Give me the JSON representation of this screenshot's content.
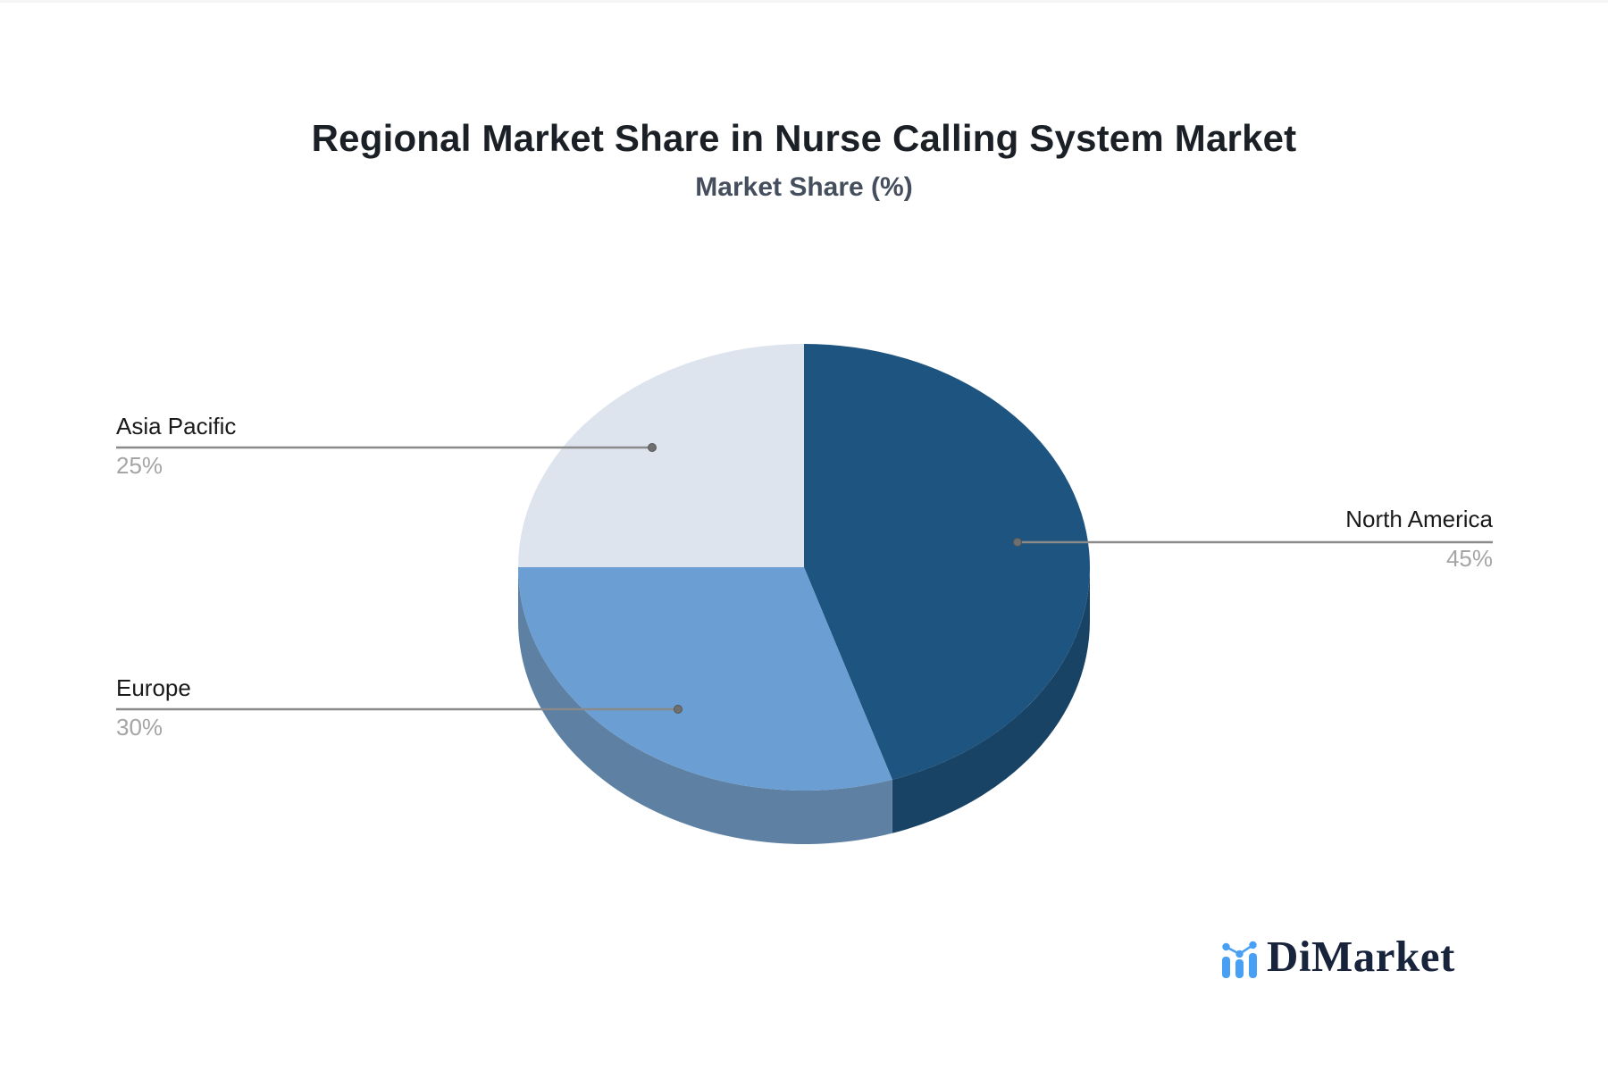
{
  "header": {
    "title": "Regional Market Share in Nurse Calling System Market",
    "subtitle": "Market Share (%)"
  },
  "chart_data": {
    "type": "pie",
    "style": "3d",
    "title": "Regional Market Share in Nurse Calling System Market",
    "subtitle": "Market Share (%)",
    "unit": "%",
    "start_angle_deg": 0,
    "direction": "clockwise",
    "legend_position": "none",
    "labels": "leader-line callouts",
    "slices": [
      {
        "label": "North America",
        "value": 45,
        "display_value": "45%",
        "color": "#1e5480",
        "side_color": "#194365"
      },
      {
        "label": "Europe",
        "value": 30,
        "display_value": "30%",
        "color": "#6b9fd3",
        "side_color": "#5d80a3"
      },
      {
        "label": "Asia Pacific",
        "value": 25,
        "display_value": "25%",
        "color": "#dde4ee",
        "side_color": "#c3cfdf"
      }
    ]
  },
  "branding": {
    "logo_text": "DiMarket",
    "logo_icon": "mini-bar-chart-icon",
    "logo_text_color": "#18233c",
    "logo_accent_color": "#47a0f4"
  },
  "colors": {
    "background": "#ffffff",
    "title_text": "#1b2026",
    "subtitle_text": "#454e5c",
    "leader_line": "#8a8a8a",
    "leader_dot": "#6f6f6f",
    "label_text": "#1a1a1a",
    "value_text": "#a5a5a5"
  }
}
